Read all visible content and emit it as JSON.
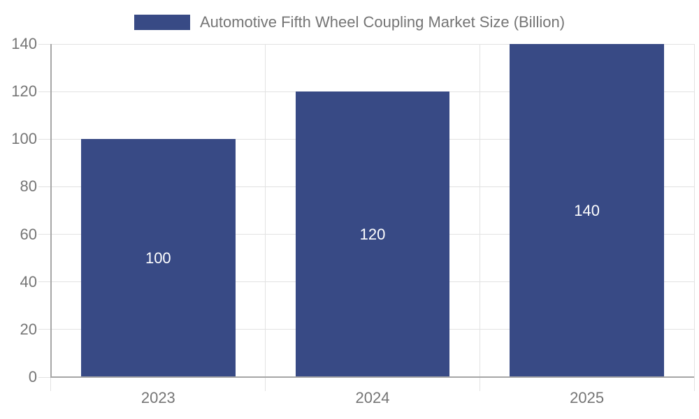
{
  "chart_data": {
    "type": "bar",
    "title": "Automotive Fifth Wheel Coupling Market Size (Billion)",
    "categories": [
      "2023",
      "2024",
      "2025"
    ],
    "values": [
      100,
      120,
      140
    ],
    "series": [
      {
        "name": "Automotive Fifth Wheel Coupling Market Size (Billion)",
        "values": [
          100,
          120,
          140
        ]
      }
    ],
    "bar_value_labels": [
      "100",
      "120",
      "140"
    ],
    "xlabel": "",
    "ylabel": "",
    "ylim": [
      0,
      140
    ],
    "yticks": [
      0,
      20,
      40,
      60,
      80,
      100,
      120,
      140
    ],
    "grid": true,
    "legend_position": "top-center",
    "legend_entries": [
      "Automotive Fifth Wheel Coupling Market Size (Billion)"
    ],
    "colors": {
      "bar": "#384a85",
      "bar_label_text": "#ffffff",
      "axis_text": "#757575",
      "axis_line": "#a6a6a6",
      "gridline": "#e2e2e2",
      "background": "#ffffff"
    }
  }
}
